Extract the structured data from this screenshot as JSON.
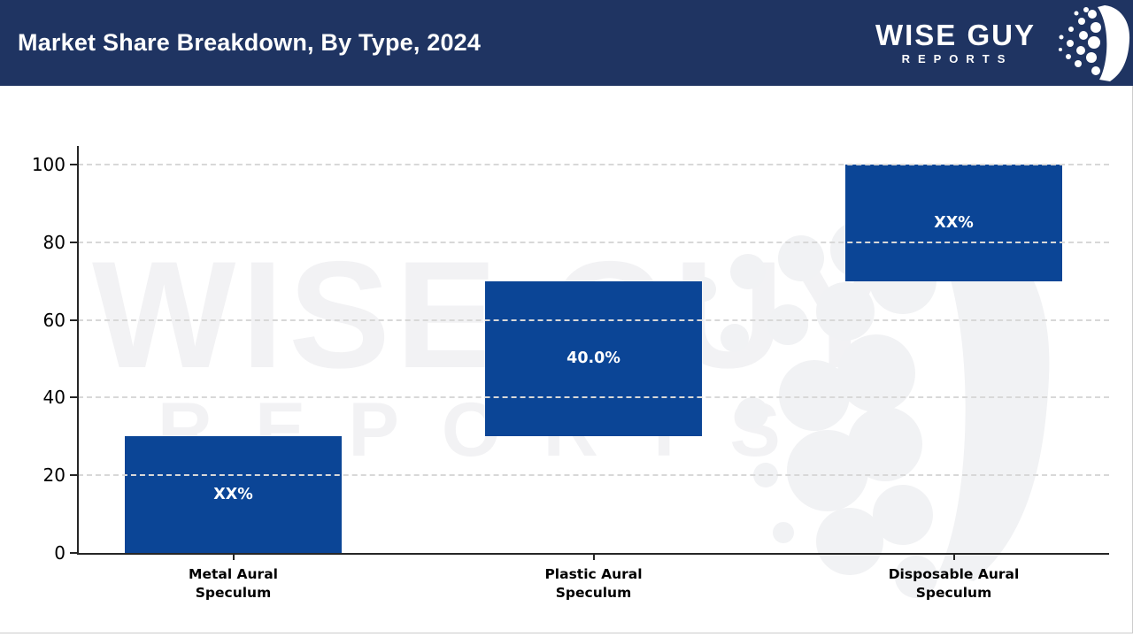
{
  "header": {
    "title": "Market Share Breakdown, By Type, 2024",
    "bg_color": "#1f3462",
    "logo": {
      "line1": "WISE GUY",
      "line2": "REPORTS"
    }
  },
  "watermark": {
    "line1": "WISE GUY",
    "line2": "REPORTS"
  },
  "chart_data": {
    "type": "bar",
    "subtype": "floating-waterfall-bars",
    "title": "Market Share Breakdown, By Type, 2024",
    "categories": [
      "Metal Aural Speculum",
      "Plastic Aural Speculum",
      "Disposable Aural Speculum"
    ],
    "bars": [
      {
        "category": "Metal Aural Speculum",
        "start": 0,
        "end": 30,
        "label": "XX%"
      },
      {
        "category": "Plastic Aural Speculum",
        "start": 30,
        "end": 70,
        "label": "40.0%"
      },
      {
        "category": "Disposable Aural Speculum",
        "start": 70,
        "end": 100,
        "label": "XX%"
      }
    ],
    "yticks": [
      "0",
      "20",
      "40",
      "60",
      "80",
      "100"
    ],
    "ylim": [
      0,
      100
    ],
    "xlabel": "",
    "ylabel": "",
    "grid": "horizontal-dashed",
    "bar_color": "#0b4596",
    "value_label_color": "#ffffff"
  }
}
